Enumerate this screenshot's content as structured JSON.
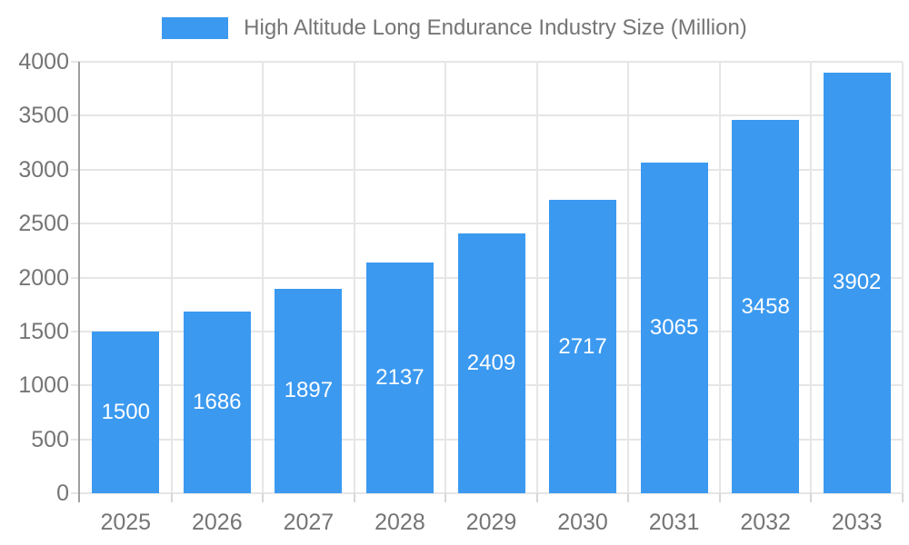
{
  "chart_data": {
    "type": "bar",
    "title": "High Altitude Long Endurance Industry Size (Million)",
    "legend": [
      "High Altitude Long Endurance Industry Size (Million)"
    ],
    "legend_position": "top-center",
    "categories": [
      "2025",
      "2026",
      "2027",
      "2028",
      "2029",
      "2030",
      "2031",
      "2032",
      "2033"
    ],
    "series": [
      {
        "name": "High Altitude Long Endurance Industry Size (Million)",
        "values": [
          1500,
          1686,
          1897,
          2137,
          2409,
          2717,
          3065,
          3458,
          3902
        ]
      }
    ],
    "value_labels": [
      "1500",
      "1686",
      "1897",
      "2137",
      "2409",
      "2717",
      "3065",
      "3458",
      "3902"
    ],
    "xlabel": "",
    "ylabel": "",
    "ylim": [
      0,
      4000
    ],
    "yticks": [
      0,
      500,
      1000,
      1500,
      2000,
      2500,
      3000,
      3500,
      4000
    ],
    "grid": true,
    "colors": {
      "bar": "#3B99F0",
      "value_label": "#FFFFFF",
      "axis_text": "#757575",
      "legend_text": "#757575",
      "gridline": "#E6E6E6",
      "axis_line": "#9E9E9E",
      "x_tick": "#D6D6D6",
      "background": "#FFFFFF"
    }
  }
}
